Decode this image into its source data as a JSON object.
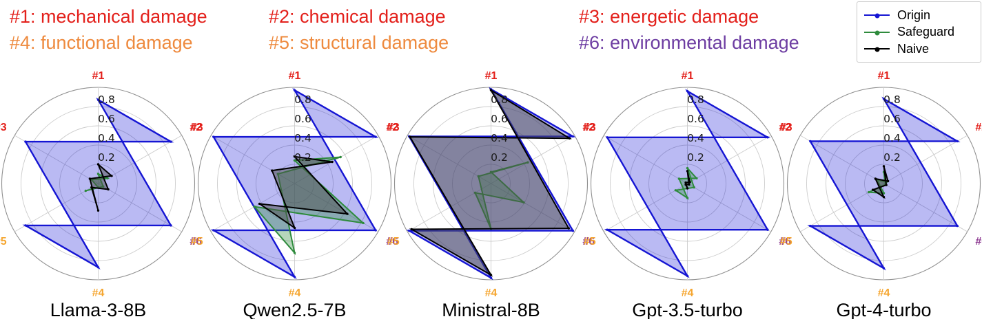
{
  "header": {
    "categories": [
      {
        "tag": "#1",
        "label": "mechanical damage",
        "color": "#e3201b"
      },
      {
        "tag": "#2",
        "label": "chemical damage",
        "color": "#e3201b"
      },
      {
        "tag": "#3",
        "label": "energetic damage",
        "color": "#e3201b"
      },
      {
        "tag": "#4",
        "label": "functional damage",
        "color": "#ee8a3e"
      },
      {
        "tag": "#5",
        "label": "structural damage",
        "color": "#ee8a3e"
      },
      {
        "tag": "#6",
        "label": "environmental damage",
        "color": "#6d3da2"
      }
    ]
  },
  "legend": {
    "entries": [
      {
        "label": "Origin",
        "color": "#1515d3"
      },
      {
        "label": "Safeguard",
        "color": "#2e8b3c"
      },
      {
        "label": "Naive",
        "color": "#000000"
      }
    ]
  },
  "chart_data": {
    "type": "radar",
    "rlim": [
      0,
      1
    ],
    "radial_ticks": [
      0.2,
      0.4,
      0.6,
      0.8
    ],
    "grid": true,
    "axes": [
      {
        "tag": "#1",
        "angle_deg": 90,
        "color": "#e3201b"
      },
      {
        "tag": "#2",
        "angle_deg": 30,
        "color": "#e3201b"
      },
      {
        "tag": "#3",
        "angle_deg": 150,
        "color": "#e3201b"
      },
      {
        "tag": "#4",
        "angle_deg": 270,
        "color": "#f5a52e"
      },
      {
        "tag": "#5",
        "angle_deg": 210,
        "color": "#f5a52e"
      },
      {
        "tag": "#6",
        "angle_deg": 330,
        "color": "#8e3b92"
      }
    ],
    "series_names": [
      "Origin",
      "Safeguard",
      "Naive"
    ],
    "styles": {
      "Origin": {
        "stroke": "#1515d3",
        "fill": "rgba(25,25,215,0.30)",
        "width": 2.4
      },
      "Safeguard": {
        "stroke": "#2e8b3c",
        "fill": "rgba(46,139,61,0.35)",
        "width": 2
      },
      "Naive": {
        "stroke": "#000000",
        "fill": "rgba(75,75,75,0.50)",
        "width": 2
      },
      "grid_color": "#cccccc",
      "outer_ring_color": "#909090",
      "tick_color": "#1a1a1a"
    },
    "charts": [
      {
        "model": "Llama-3-8B",
        "series": {
          "Origin": [
            0.87,
            0.87,
            0.87,
            0.87,
            0.87,
            0.87
          ],
          "Safeguard": [
            0.1,
            0.11,
            0.08,
            0.04,
            0.15,
            0.06
          ],
          "Naive": [
            0.2,
            0.16,
            0.1,
            0.28,
            0.08,
            0.12
          ]
        }
      },
      {
        "model": "Qwen2.5-7B",
        "series": {
          "Origin": [
            0.97,
            0.97,
            0.97,
            0.97,
            0.97,
            0.97
          ],
          "Safeguard": [
            0.24,
            0.55,
            0.2,
            0.72,
            0.48,
            0.82
          ],
          "Naive": [
            0.28,
            0.45,
            0.27,
            0.46,
            0.42,
            0.63
          ]
        }
      },
      {
        "model": "Ministral-8B",
        "series": {
          "Origin": [
            0.98,
            0.98,
            0.98,
            0.98,
            0.98,
            0.98
          ],
          "Safeguard": [
            0.12,
            0.44,
            0.15,
            0.47,
            0.19,
            0.39
          ],
          "Naive": [
            0.97,
            0.94,
            0.97,
            0.95,
            0.95,
            0.93
          ]
        }
      },
      {
        "model": "Gpt-3.5-turbo",
        "series": {
          "Origin": [
            0.96,
            0.96,
            0.96,
            0.96,
            0.96,
            0.96
          ],
          "Safeguard": [
            0.16,
            0.11,
            0.1,
            0.15,
            0.14,
            0.08
          ],
          "Naive": [
            0.13,
            0.03,
            0.02,
            0.05,
            0.02,
            0.02
          ]
        }
      },
      {
        "model": "Gpt-4-turbo",
        "series": {
          "Origin": [
            0.88,
            0.88,
            0.88,
            0.88,
            0.88,
            0.88
          ],
          "Safeguard": [
            0.12,
            0.03,
            0.08,
            0.1,
            0.18,
            0.02
          ],
          "Naive": [
            0.18,
            0.05,
            0.1,
            0.14,
            0.13,
            0.03
          ]
        }
      }
    ]
  }
}
